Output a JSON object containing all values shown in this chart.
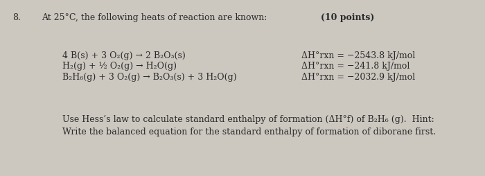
{
  "bg_color": "#ccc8c0",
  "text_color": "#2a2a2a",
  "number": "8.",
  "header_normal": "At 25°C, the following heats of reaction are known: ",
  "header_bold": "(10 points)",
  "reactions": [
    "4 B(s) + 3 O₂(g) → 2 B₂O₃(s)",
    "H₂(g) + ½ O₂(g) → H₂O(g)",
    "B₂H₆(g) + 3 O₂(g) → B₂O₃(s) + 3 H₂O(g)"
  ],
  "enthalpies": [
    "ΔH°rxn = −2543.8 kJ/mol",
    "ΔH°rxn = −241.8 kJ/mol",
    "ΔH°rxn = −2032.9 kJ/mol"
  ],
  "footer_line1": "Use Hess’s law to calculate standard enthalpy of formation (ΔH°f) of B₂H₆ (g).  Hint:",
  "footer_line2": "Write the balanced equation for the standard enthalpy of formation of diborane first.",
  "fontsize": 9.0
}
